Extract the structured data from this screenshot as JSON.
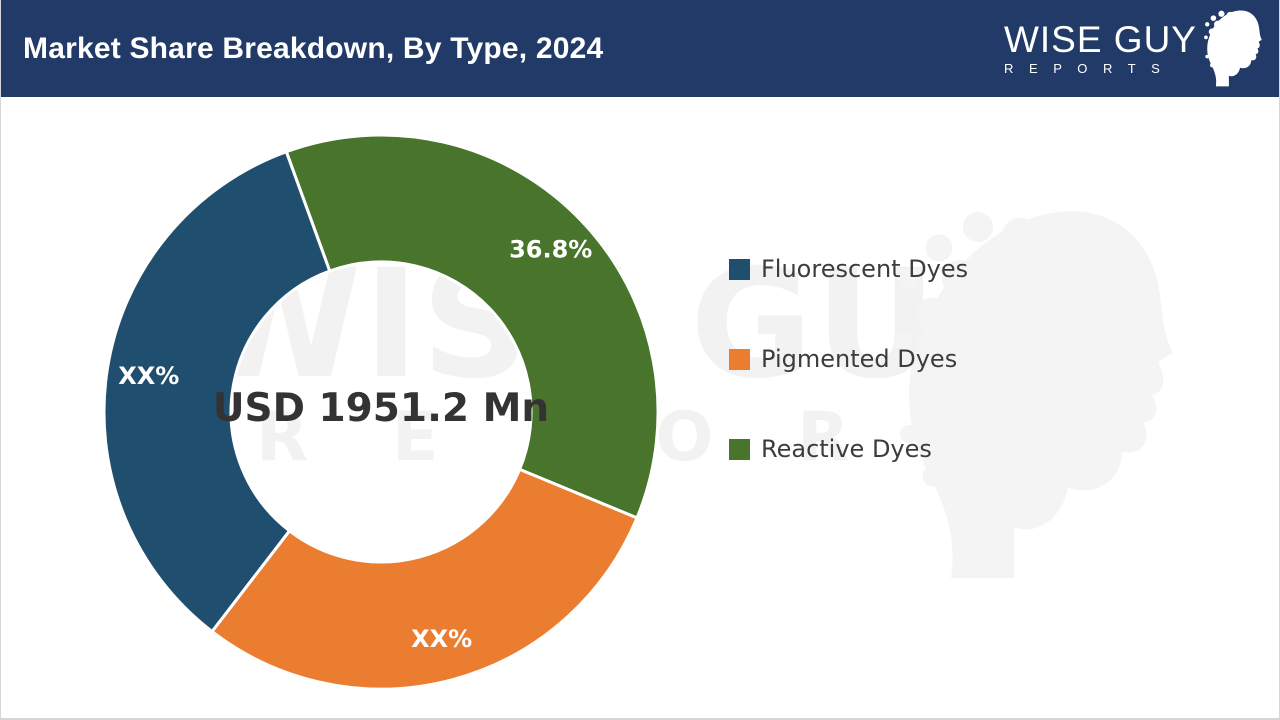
{
  "header": {
    "title": "Market Share Breakdown, By Type, 2024",
    "logo_brand": "WISE GUY",
    "logo_sub": "R E P O R T S"
  },
  "watermark": {
    "line1": "WISE GUY",
    "line2": "R E P O R T S"
  },
  "chart_data": {
    "type": "pie",
    "subtype": "donut",
    "title": "Market Share Breakdown, By Type, 2024",
    "center_label": "USD 1951.2 Mn",
    "start_angle_deg": -20,
    "legend_position": "right",
    "series": [
      {
        "name": "Fluorescent Dyes",
        "display_label": "XX%",
        "value_pct_est": 34.0,
        "color": "#204E6E"
      },
      {
        "name": "Pigmented Dyes",
        "display_label": "XX%",
        "value_pct_est": 29.2,
        "color": "#EB7D31"
      },
      {
        "name": "Reactive Dyes",
        "display_label": "36.8%",
        "value_pct_est": 36.8,
        "color": "#48742B"
      }
    ]
  },
  "colors": {
    "header_bg": "#223A68",
    "border": "#D6D6D6",
    "center_text": "#333333",
    "legend_text": "#3C3C3C",
    "watermark": "#F2F2F2",
    "segment_gap": "#FFFFFF"
  }
}
